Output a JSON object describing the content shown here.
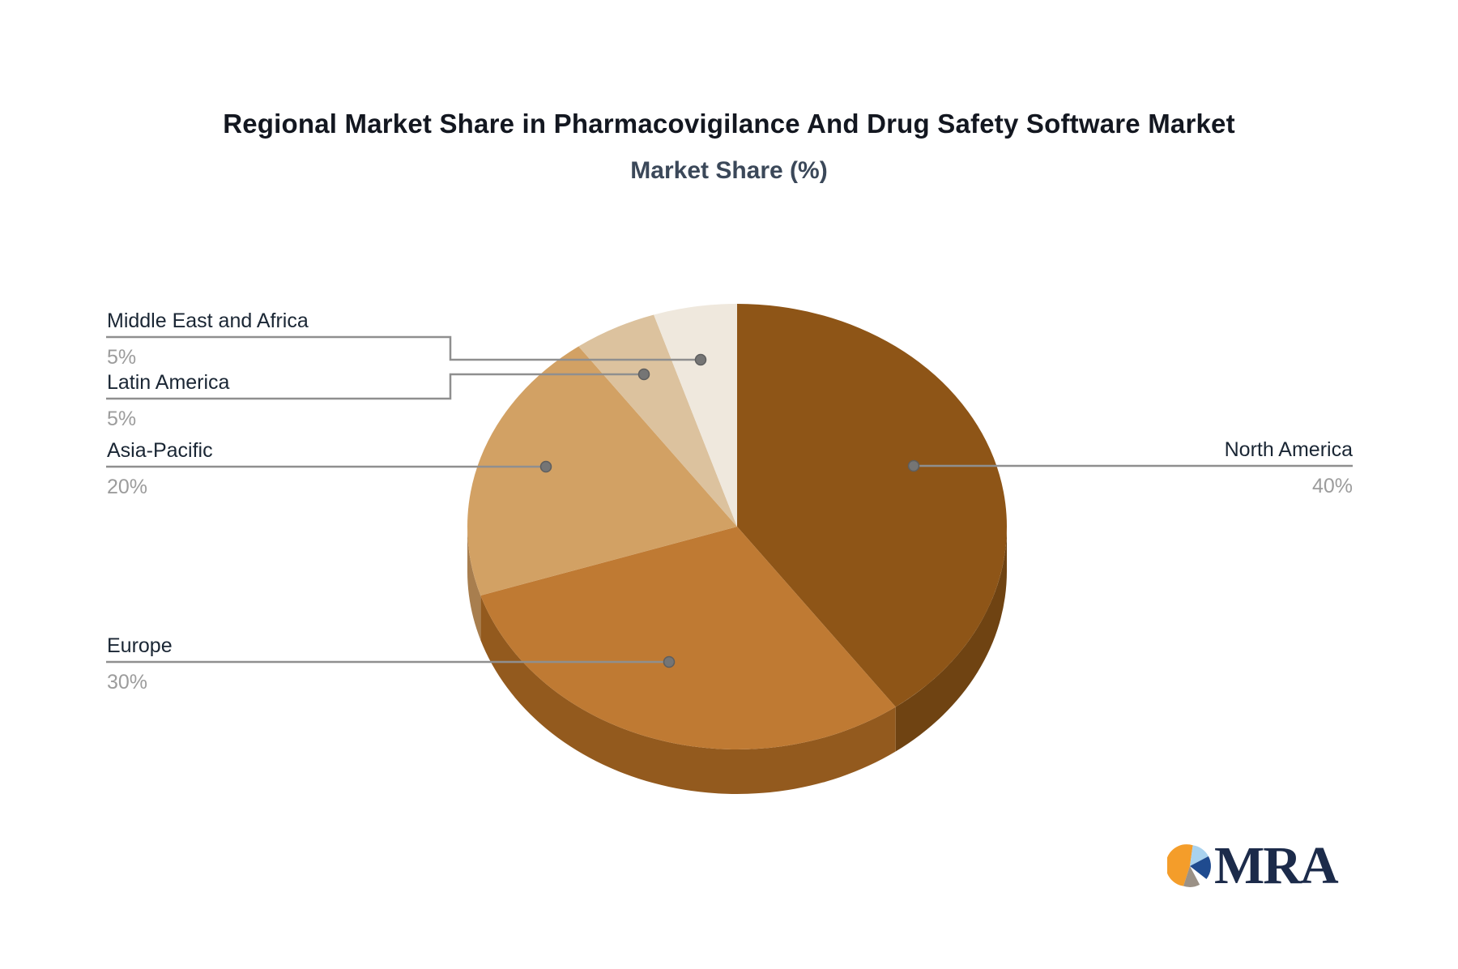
{
  "header": {
    "title": "Regional Market Share in Pharmacovigilance And Drug Safety Software Market",
    "subtitle": "Market Share (%)"
  },
  "chart_data": {
    "type": "pie",
    "style": "3d",
    "title": "Regional Market Share in Pharmacovigilance And Drug Safety Software Market",
    "subtitle": "Market Share (%)",
    "unit": "%",
    "start_angle_deg": 0,
    "clockwise": true,
    "legend_position": "callout-labels",
    "segments": [
      {
        "label": "North America",
        "value": 40,
        "pct": "40%",
        "color": "#8e5517",
        "side_color": "#6f4312"
      },
      {
        "label": "Europe",
        "value": 30,
        "pct": "30%",
        "color": "#bf7a33",
        "side_color": "#935a1e"
      },
      {
        "label": "Asia-Pacific",
        "value": 20,
        "pct": "20%",
        "color": "#d2a164",
        "side_color": "#a87e4e"
      },
      {
        "label": "Latin America",
        "value": 5,
        "pct": "5%",
        "color": "#dcc29e",
        "side_color": "#b39a77"
      },
      {
        "label": "Middle East and Africa",
        "value": 5,
        "pct": "5%",
        "color": "#efe8dd",
        "side_color": "#c6bcae"
      }
    ],
    "label_color": "#1a2634",
    "pct_color": "#9c9c9c",
    "line_color": "#8f8f8f",
    "dot_color": "#757575"
  },
  "logo": {
    "text": "MRA",
    "text_color": "#1c2b4a",
    "icon_colors": {
      "orange": "#f49d2a",
      "light_blue": "#a9d2ee",
      "dark_blue": "#1f4b8f",
      "gray": "#9b9186"
    }
  }
}
